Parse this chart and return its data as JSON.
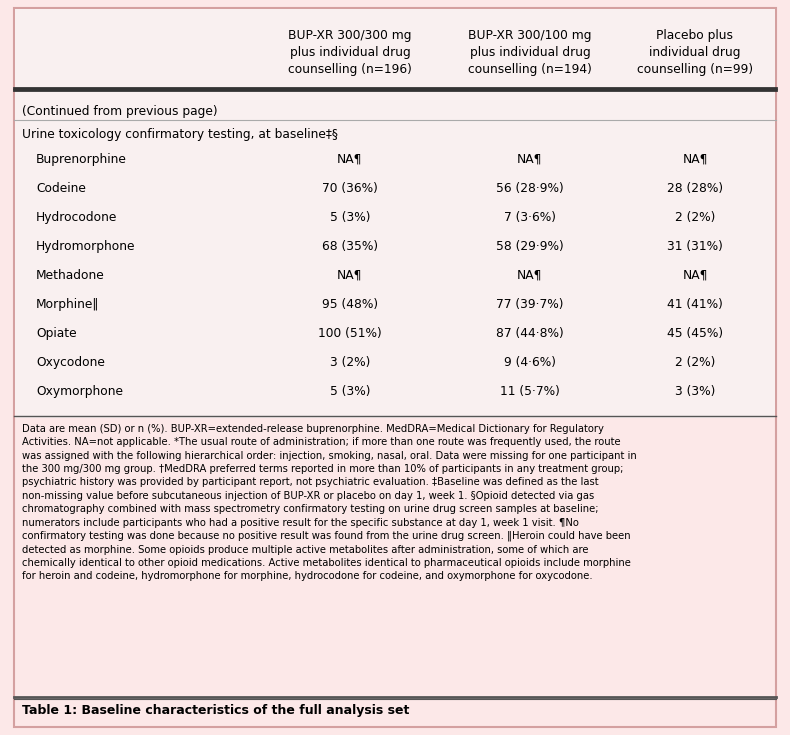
{
  "background_color": "#fce8e8",
  "table_bg": "#ffffff",
  "col_headers": [
    "BUP-XR 300/300 mg\nplus individual drug\ncounselling (n=196)",
    "BUP-XR 300/100 mg\nplus individual drug\ncounselling (n=194)",
    "Placebo plus\nindividual drug\ncounselling (n=99)"
  ],
  "continued_text": "(Continued from previous page)",
  "section_header": "Urine toxicology confirmatory testing, at baseline‡§",
  "rows": [
    [
      "Buprenorphine",
      "NA¶",
      "NA¶",
      "NA¶"
    ],
    [
      "Codeine",
      "70 (36%)",
      "56 (28·9%)",
      "28 (28%)"
    ],
    [
      "Hydrocodone",
      "5 (3%)",
      "7 (3·6%)",
      "2 (2%)"
    ],
    [
      "Hydromorphone",
      "68 (35%)",
      "58 (29·9%)",
      "31 (31%)"
    ],
    [
      "Methadone",
      "NA¶",
      "NA¶",
      "NA¶"
    ],
    [
      "Morphine‖",
      "95 (48%)",
      "77 (39·7%)",
      "41 (41%)"
    ],
    [
      "Opiate",
      "100 (51%)",
      "87 (44·8%)",
      "45 (45%)"
    ],
    [
      "Oxycodone",
      "3 (2%)",
      "9 (4·6%)",
      "2 (2%)"
    ],
    [
      "Oxymorphone",
      "5 (3%)",
      "11 (5·7%)",
      "3 (3%)"
    ]
  ],
  "footnote": "Data are mean (SD) or n (%). BUP-XR=extended-release buprenorphine. MedDRA=Medical Dictionary for Regulatory\nActivities. NA=not applicable. *The usual route of administration; if more than one route was frequently used, the route\nwas assigned with the following hierarchical order: injection, smoking, nasal, oral. Data were missing for one participant in\nthe 300 mg/300 mg group. †MedDRA preferred terms reported in more than 10% of participants in any treatment group;\npsychiatric history was provided by participant report, not psychiatric evaluation. ‡Baseline was defined as the last\nnon-missing value before subcutaneous injection of BUP-XR or placebo on day 1, week 1. §Opioid detected via gas\nchromatography combined with mass spectrometry confirmatory testing on urine drug screen samples at baseline;\nnumerators include participants who had a positive result for the specific substance at day 1, week 1 visit. ¶No\nconfirmatory testing was done because no positive result was found from the urine drug screen. ‖Heroin could have been\ndetected as morphine. Some opioids produce multiple active metabolites after administration, some of which are\nchemically identical to other opioid medications. Active metabolites identical to pharmaceutical opioids include morphine\nfor heroin and codeine, hydromorphone for morphine, hydrocodone for codeine, and oxymorphone for oxycodone.",
  "table_caption": "Table 1: Baseline characteristics of the full analysis set",
  "outer_border_color": "#d4a0a0",
  "line_color": "#555555"
}
